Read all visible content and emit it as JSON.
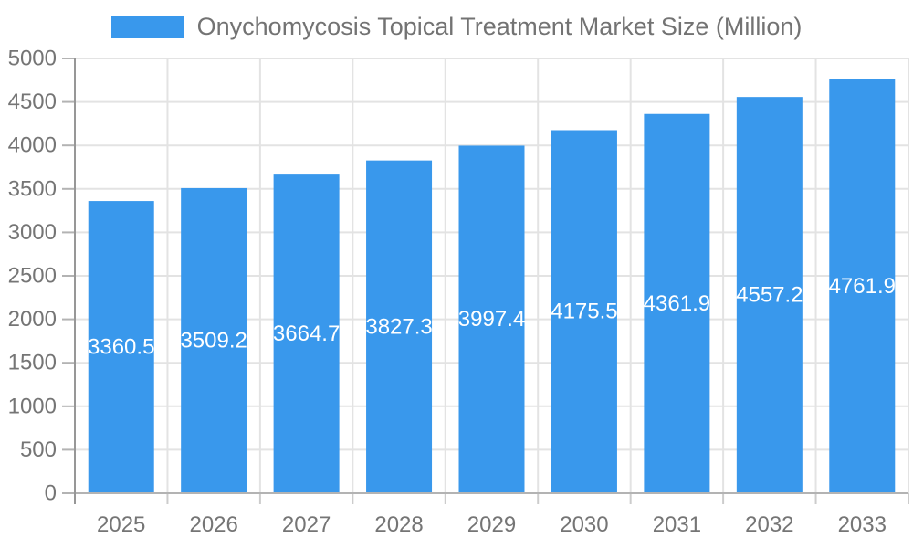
{
  "chart_data": {
    "type": "bar",
    "title": "Onychomycosis Topical Treatment Market Size (Million)",
    "series_name": "Onychomycosis Topical Treatment Market Size (Million)",
    "categories": [
      "2025",
      "2026",
      "2027",
      "2028",
      "2029",
      "2030",
      "2031",
      "2032",
      "2033"
    ],
    "values": [
      3360.5,
      3509.2,
      3664.7,
      3827.3,
      3997.4,
      4175.5,
      4361.9,
      4557.2,
      4761.9
    ],
    "bar_labels": [
      3360.5,
      3509.2,
      3664.7,
      3827.3,
      3997.4,
      4175.5,
      4361.9,
      4557.2,
      4761.9
    ],
    "xlabel": "",
    "ylabel": "",
    "ylim": [
      0,
      5000
    ],
    "ytick_step": 500,
    "ytick_labels": [
      "0",
      "500",
      "1000",
      "1500",
      "2000",
      "2500",
      "3000",
      "3500",
      "4000",
      "4500",
      "5000"
    ],
    "grid": true,
    "legend_position": "top",
    "colors": {
      "bar": "#3998EC",
      "grid": "#E3E3E3",
      "axis_y": "#979797",
      "axis_x": "#B3B3B3",
      "y_tick": "#B3B3B3",
      "x_tick": "#CCCCCC",
      "tick_text": "#757575",
      "legend_text": "#737373",
      "bar_label_text": "#FFFFFF",
      "background": "#FFFFFF"
    }
  }
}
